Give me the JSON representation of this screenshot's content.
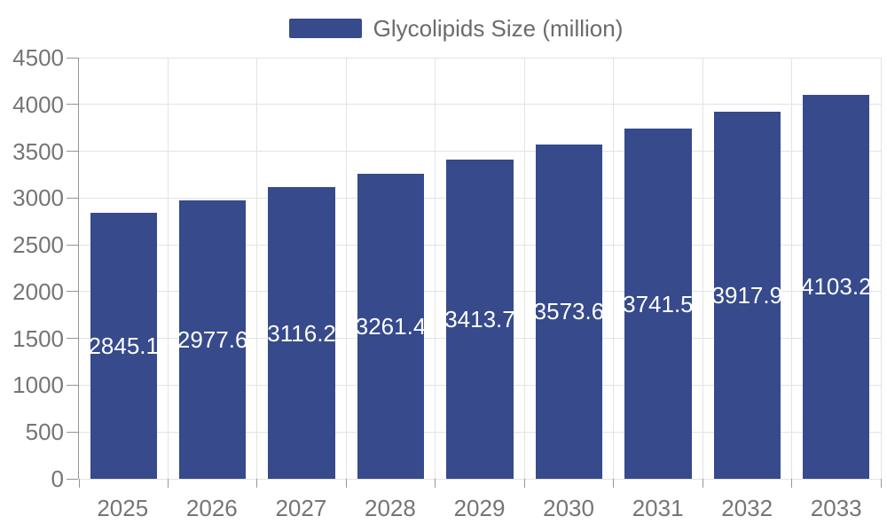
{
  "legend": {
    "label": "Glycolipids Size (million)",
    "swatch_color": "#364a8c"
  },
  "chart_data": {
    "type": "bar",
    "title": "",
    "xlabel": "",
    "ylabel": "",
    "categories": [
      "2025",
      "2026",
      "2027",
      "2028",
      "2029",
      "2030",
      "2031",
      "2032",
      "2033"
    ],
    "series": [
      {
        "name": "Glycolipids Size (million)",
        "values": [
          2845.1,
          2977.6,
          3116.2,
          3261.4,
          3413.7,
          3573.6,
          3741.5,
          3917.9,
          4103.2
        ]
      }
    ],
    "value_labels_shown": true,
    "ylim": [
      0,
      4500
    ],
    "yticks": [
      0,
      500,
      1000,
      1500,
      2000,
      2500,
      3000,
      3500,
      4000,
      4500
    ],
    "grid": true,
    "legend_position": "top-center",
    "bar_width_fraction": 0.75
  },
  "colors": {
    "bar": "#364a8c",
    "grid": "#e3e3e3",
    "axis": "#969696",
    "tick_label": "#757575",
    "legend_label": "#6b6b6b",
    "value_label": "#ffffff",
    "background": "#ffffff"
  }
}
